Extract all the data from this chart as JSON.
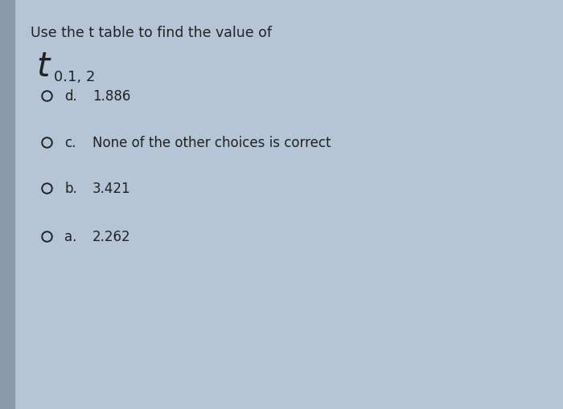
{
  "background_color": "#b5c5d5",
  "left_bar_color": "#8a9aaa",
  "title_text": "Use the t table to find the value of",
  "formula_t": "t",
  "formula_sub": "0.1, 2",
  "choices": [
    {
      "label": "a.",
      "value": "2.262"
    },
    {
      "label": "b.",
      "value": "3.421"
    },
    {
      "label": "c.",
      "value": "None of the other choices is correct"
    },
    {
      "label": "d.",
      "value": "1.886"
    }
  ],
  "title_fontsize": 12.5,
  "formula_t_fontsize": 30,
  "formula_sub_fontsize": 13,
  "choice_label_fontsize": 12,
  "choice_value_fontsize": 12,
  "text_color": "#222222",
  "circle_size": 9,
  "fig_width": 7.0,
  "fig_height": 5.1,
  "dpi": 100
}
